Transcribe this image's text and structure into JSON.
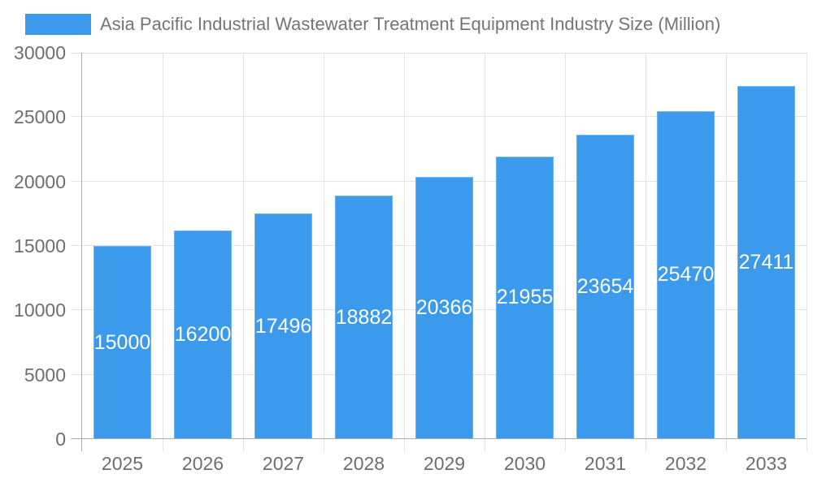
{
  "chart_data": {
    "type": "bar",
    "title": "Asia Pacific Industrial Wastewater Treatment Equipment Industry Size (Million)",
    "categories": [
      "2025",
      "2026",
      "2027",
      "2028",
      "2029",
      "2030",
      "2031",
      "2032",
      "2033"
    ],
    "values": [
      15000,
      16200,
      17496,
      18882,
      20366,
      21955,
      23654,
      25470,
      27411
    ],
    "series_name": "Asia Pacific Industrial Wastewater Treatment Equipment Industry Size (Million)",
    "xlabel": "",
    "ylabel": "",
    "ylim": [
      0,
      30000
    ],
    "yticks": [
      0,
      5000,
      10000,
      15000,
      20000,
      25000,
      30000
    ],
    "grid": true,
    "legend_position": "top-left",
    "value_label_position": "inside-center",
    "colors": {
      "bar": "#3C9AEC",
      "bar_value_label": "#FFFFFF",
      "axis_line": "#ADADAD",
      "gridline": "#E3E3E3",
      "axis_label": "#6E6E6E",
      "title": "#757575",
      "background": "#FFFFFF"
    }
  }
}
